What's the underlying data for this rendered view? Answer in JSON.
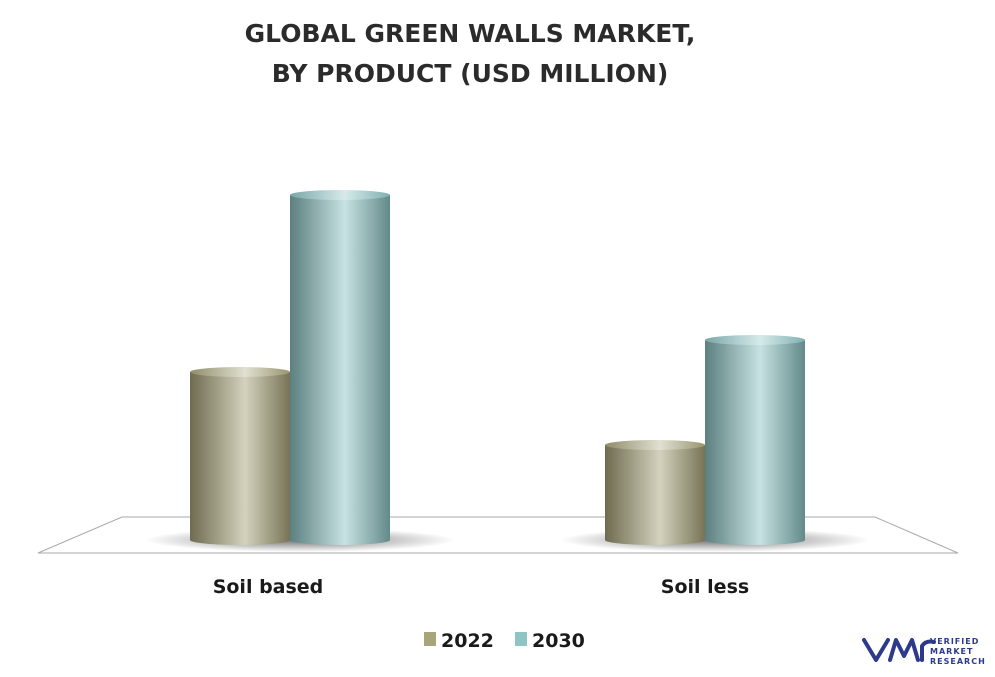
{
  "chart_data": {
    "type": "bar",
    "title": [
      "GLOBAL GREEN WALLS MARKET,",
      "BY PRODUCT (USD MILLION)"
    ],
    "categories": [
      "Soil based",
      "Soil less"
    ],
    "series": [
      {
        "name": "2022",
        "color": "#a9a57b",
        "values": [
          168,
          95
        ]
      },
      {
        "name": "2030",
        "color": "#8ec4c4",
        "values": [
          345,
          200
        ]
      }
    ],
    "logo": [
      "VERIFIED",
      "MARKET",
      "RESEARCH"
    ]
  }
}
